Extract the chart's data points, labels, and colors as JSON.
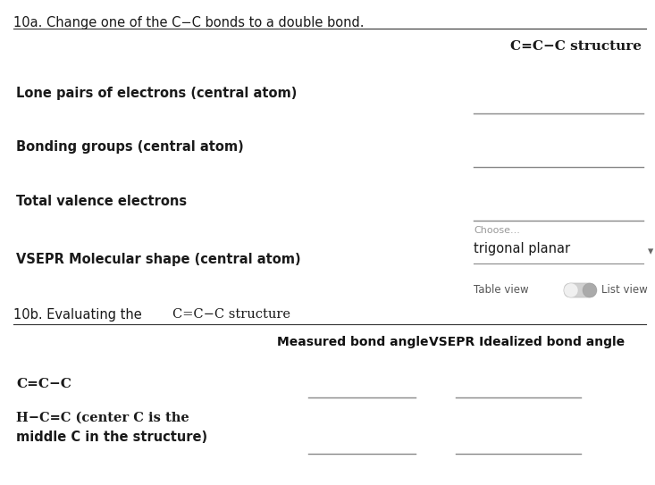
{
  "title": "10a. Change one of the C−C bonds to a double bond.",
  "structure_label_parts": [
    "C=C−C",
    " structure"
  ],
  "rows": [
    "Lone pairs of electrons (central atom)",
    "Bonding groups (central atom)",
    "Total valence electrons",
    "VSEPR Molecular shape (central atom)"
  ],
  "dropdown_hint": "Choose...",
  "dropdown_label": "trigonal planar",
  "toggle_left": "Table view",
  "toggle_right": "List view",
  "section_b_prefix": "10b. Evaluating the ",
  "section_b_formula": "C=C−C",
  "section_b_suffix": " structure",
  "table_headers": [
    "Measured bond angle",
    "VSEPR Idealized bond angle"
  ],
  "table_row1_formula": "C=C−C",
  "table_row2_formula": "H−C=C",
  "table_row2_suffix": " (center C is the",
  "table_row2_line2": "middle C in the structure)",
  "bg_color": "#ffffff",
  "text_color": "#1a1a1a",
  "line_color": "#888888",
  "divider_color": "#333333",
  "hint_color": "#999999",
  "toggle_text_color": "#555555",
  "header_color": "#111111"
}
